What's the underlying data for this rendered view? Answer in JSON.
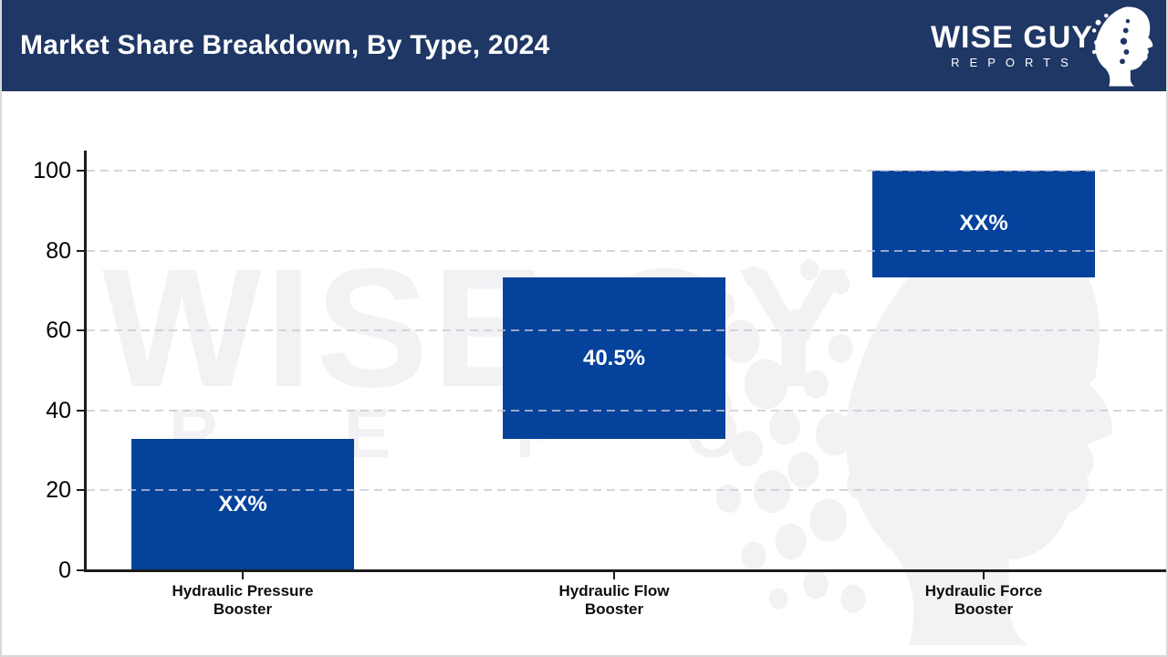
{
  "header": {
    "title": "Market Share Breakdown, By Type, 2024",
    "logo": {
      "word": "WISE GUY",
      "sub": "REPORTS"
    }
  },
  "watermark": {
    "big": "WISE G",
    "letter_y": "Y",
    "sub": "R E P O R T S"
  },
  "chart_data": {
    "type": "bar",
    "variant": "floating-segment-percentage-bars",
    "title": "Market Share Breakdown, By Type, 2024",
    "categories": [
      [
        "Hydraulic Pressure",
        "Booster"
      ],
      [
        "Hydraulic Flow",
        "Booster"
      ],
      [
        "Hydraulic Force",
        "Booster"
      ]
    ],
    "segments": [
      {
        "category": "Hydraulic Pressure Booster",
        "start": 0,
        "end": 32.8,
        "value_label": "XX%"
      },
      {
        "category": "Hydraulic Flow Booster",
        "start": 32.8,
        "end": 73.3,
        "value_label": "40.5%"
      },
      {
        "category": "Hydraulic Force Booster",
        "start": 73.3,
        "end": 100,
        "value_label": "XX%"
      }
    ],
    "yticks": [
      0,
      20,
      40,
      60,
      80,
      100
    ],
    "ylim": [
      0,
      105
    ],
    "xlabel": "",
    "ylabel": "",
    "legend": "none",
    "grid": {
      "horizontal": true,
      "style": "dashed"
    },
    "colors": {
      "bar": "#04429c",
      "header_bg": "#1f3765",
      "gridline": "#d9d9d9",
      "axis": "#1c1c1c",
      "watermark": "#f2f2f5"
    }
  }
}
